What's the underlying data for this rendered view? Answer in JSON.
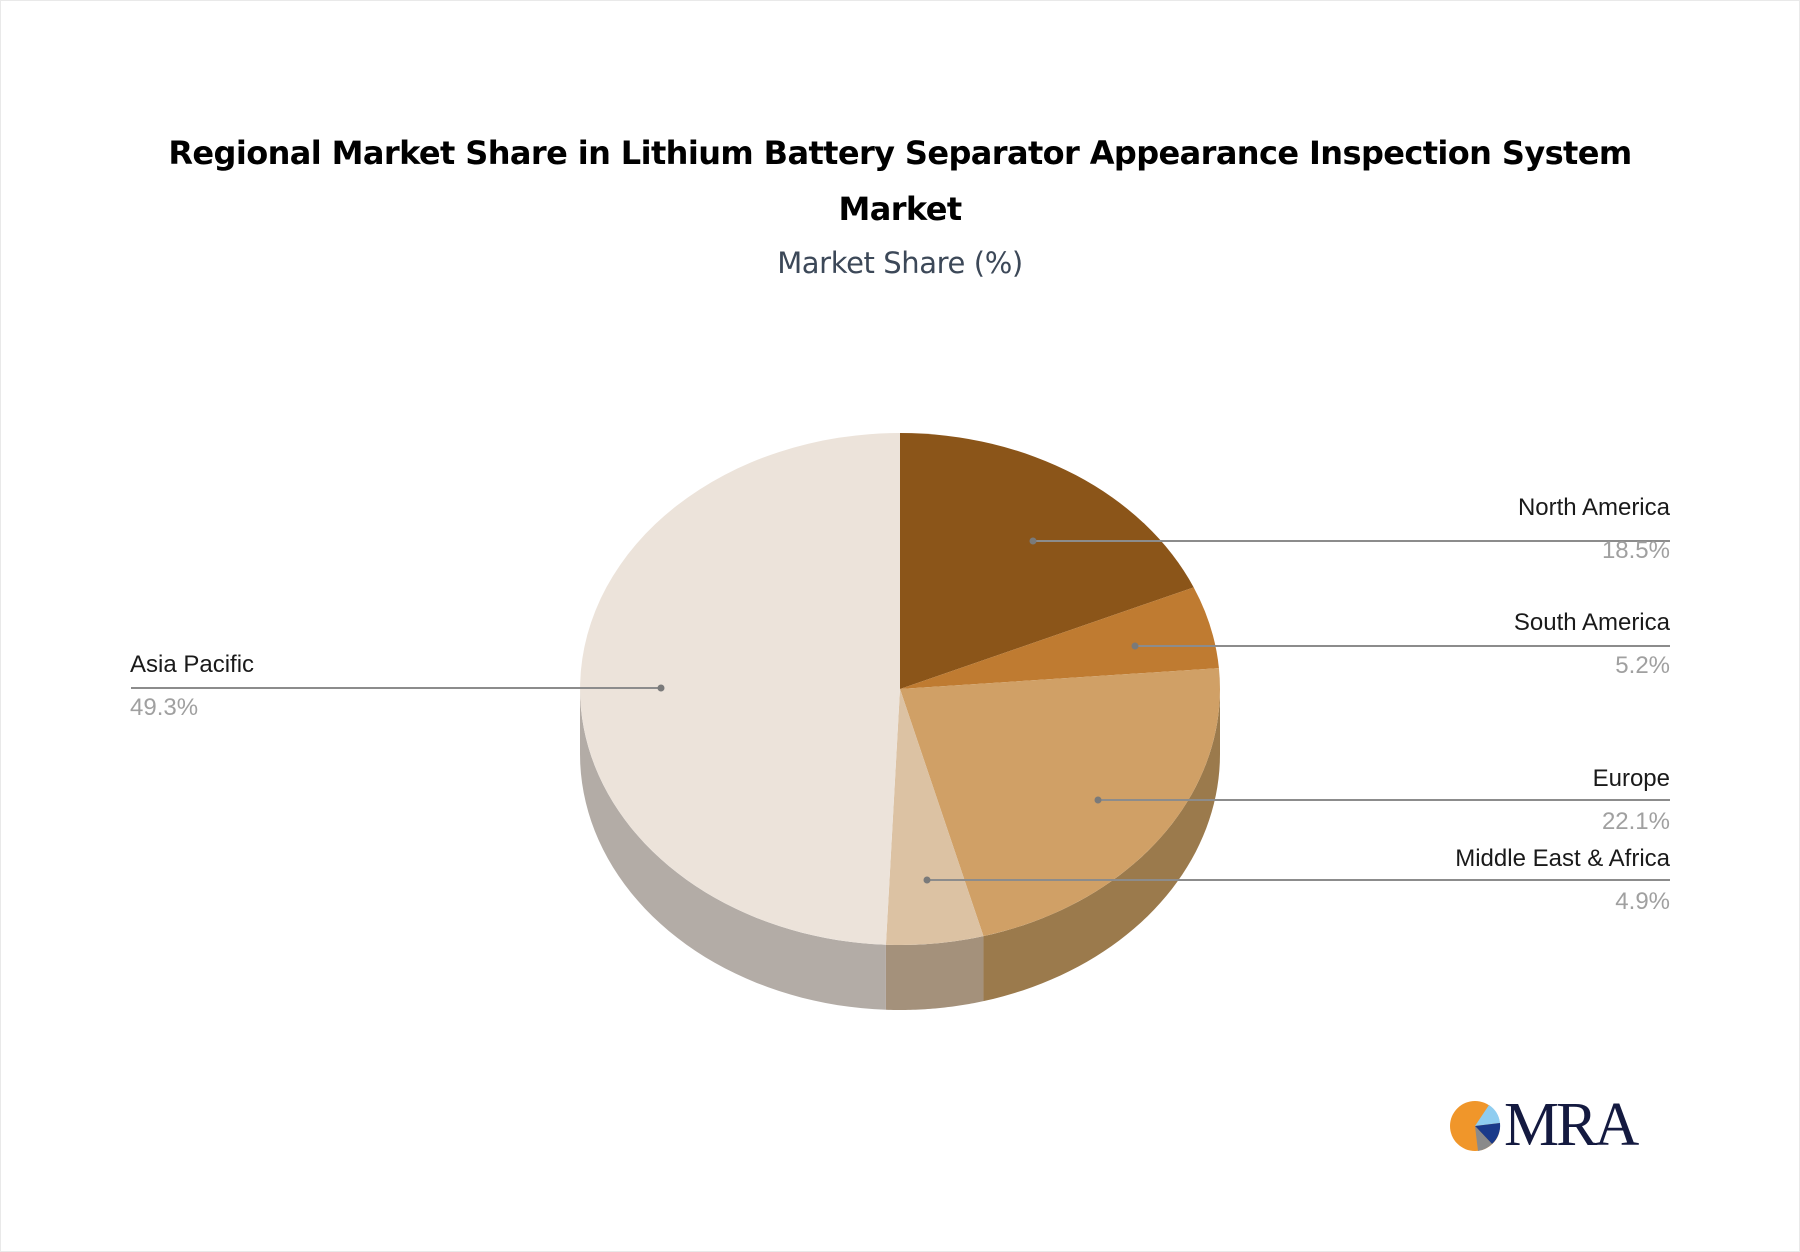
{
  "chart_data": {
    "type": "pie",
    "variant": "3d",
    "title": "Regional Market Share in Lithium Battery Separator Appearance Inspection System Market",
    "title_lines": [
      "Regional Market Share in Lithium Battery Separator Appearance Inspection System",
      "Market"
    ],
    "subtitle": "Market Share (%)",
    "unit": "%",
    "legend": "none (callout labels)",
    "categories": [
      "North America",
      "South America",
      "Europe",
      "Middle East & Africa",
      "Asia Pacific"
    ],
    "values": [
      18.5,
      5.2,
      22.1,
      4.9,
      49.3
    ],
    "value_labels": [
      "18.5%",
      "5.2%",
      "22.1%",
      "4.9%",
      "49.3%"
    ],
    "start_angle": "12 o'clock, clockwise",
    "slices": [
      {
        "name": "North America",
        "value": 18.5,
        "label": "18.5%",
        "color": "#8b5519",
        "side_color": "#7a5a32",
        "side": "right"
      },
      {
        "name": "South America",
        "value": 5.2,
        "label": "5.2%",
        "color": "#bf7b31",
        "side_color": "#9b7a4c",
        "side": "right"
      },
      {
        "name": "Europe",
        "value": 22.1,
        "label": "22.1%",
        "color": "#d0a066",
        "side_color": "#9b7a4c",
        "side": "right"
      },
      {
        "name": "Middle East & Africa",
        "value": 4.9,
        "label": "4.9%",
        "color": "#dcc2a3",
        "side_color": "#a4917b",
        "side": "right"
      },
      {
        "name": "Asia Pacific",
        "value": 49.3,
        "label": "49.3%",
        "color": "#ece3da",
        "side_color": "#b3aca6",
        "side": "left"
      }
    ]
  },
  "branding": {
    "logo_text": "MRA",
    "logo_colors": {
      "orange": "#f0962a",
      "light_blue": "#8fcdf0",
      "navy": "#1a3a8a",
      "gray": "#8a8a8a",
      "text": "#141a40"
    }
  }
}
